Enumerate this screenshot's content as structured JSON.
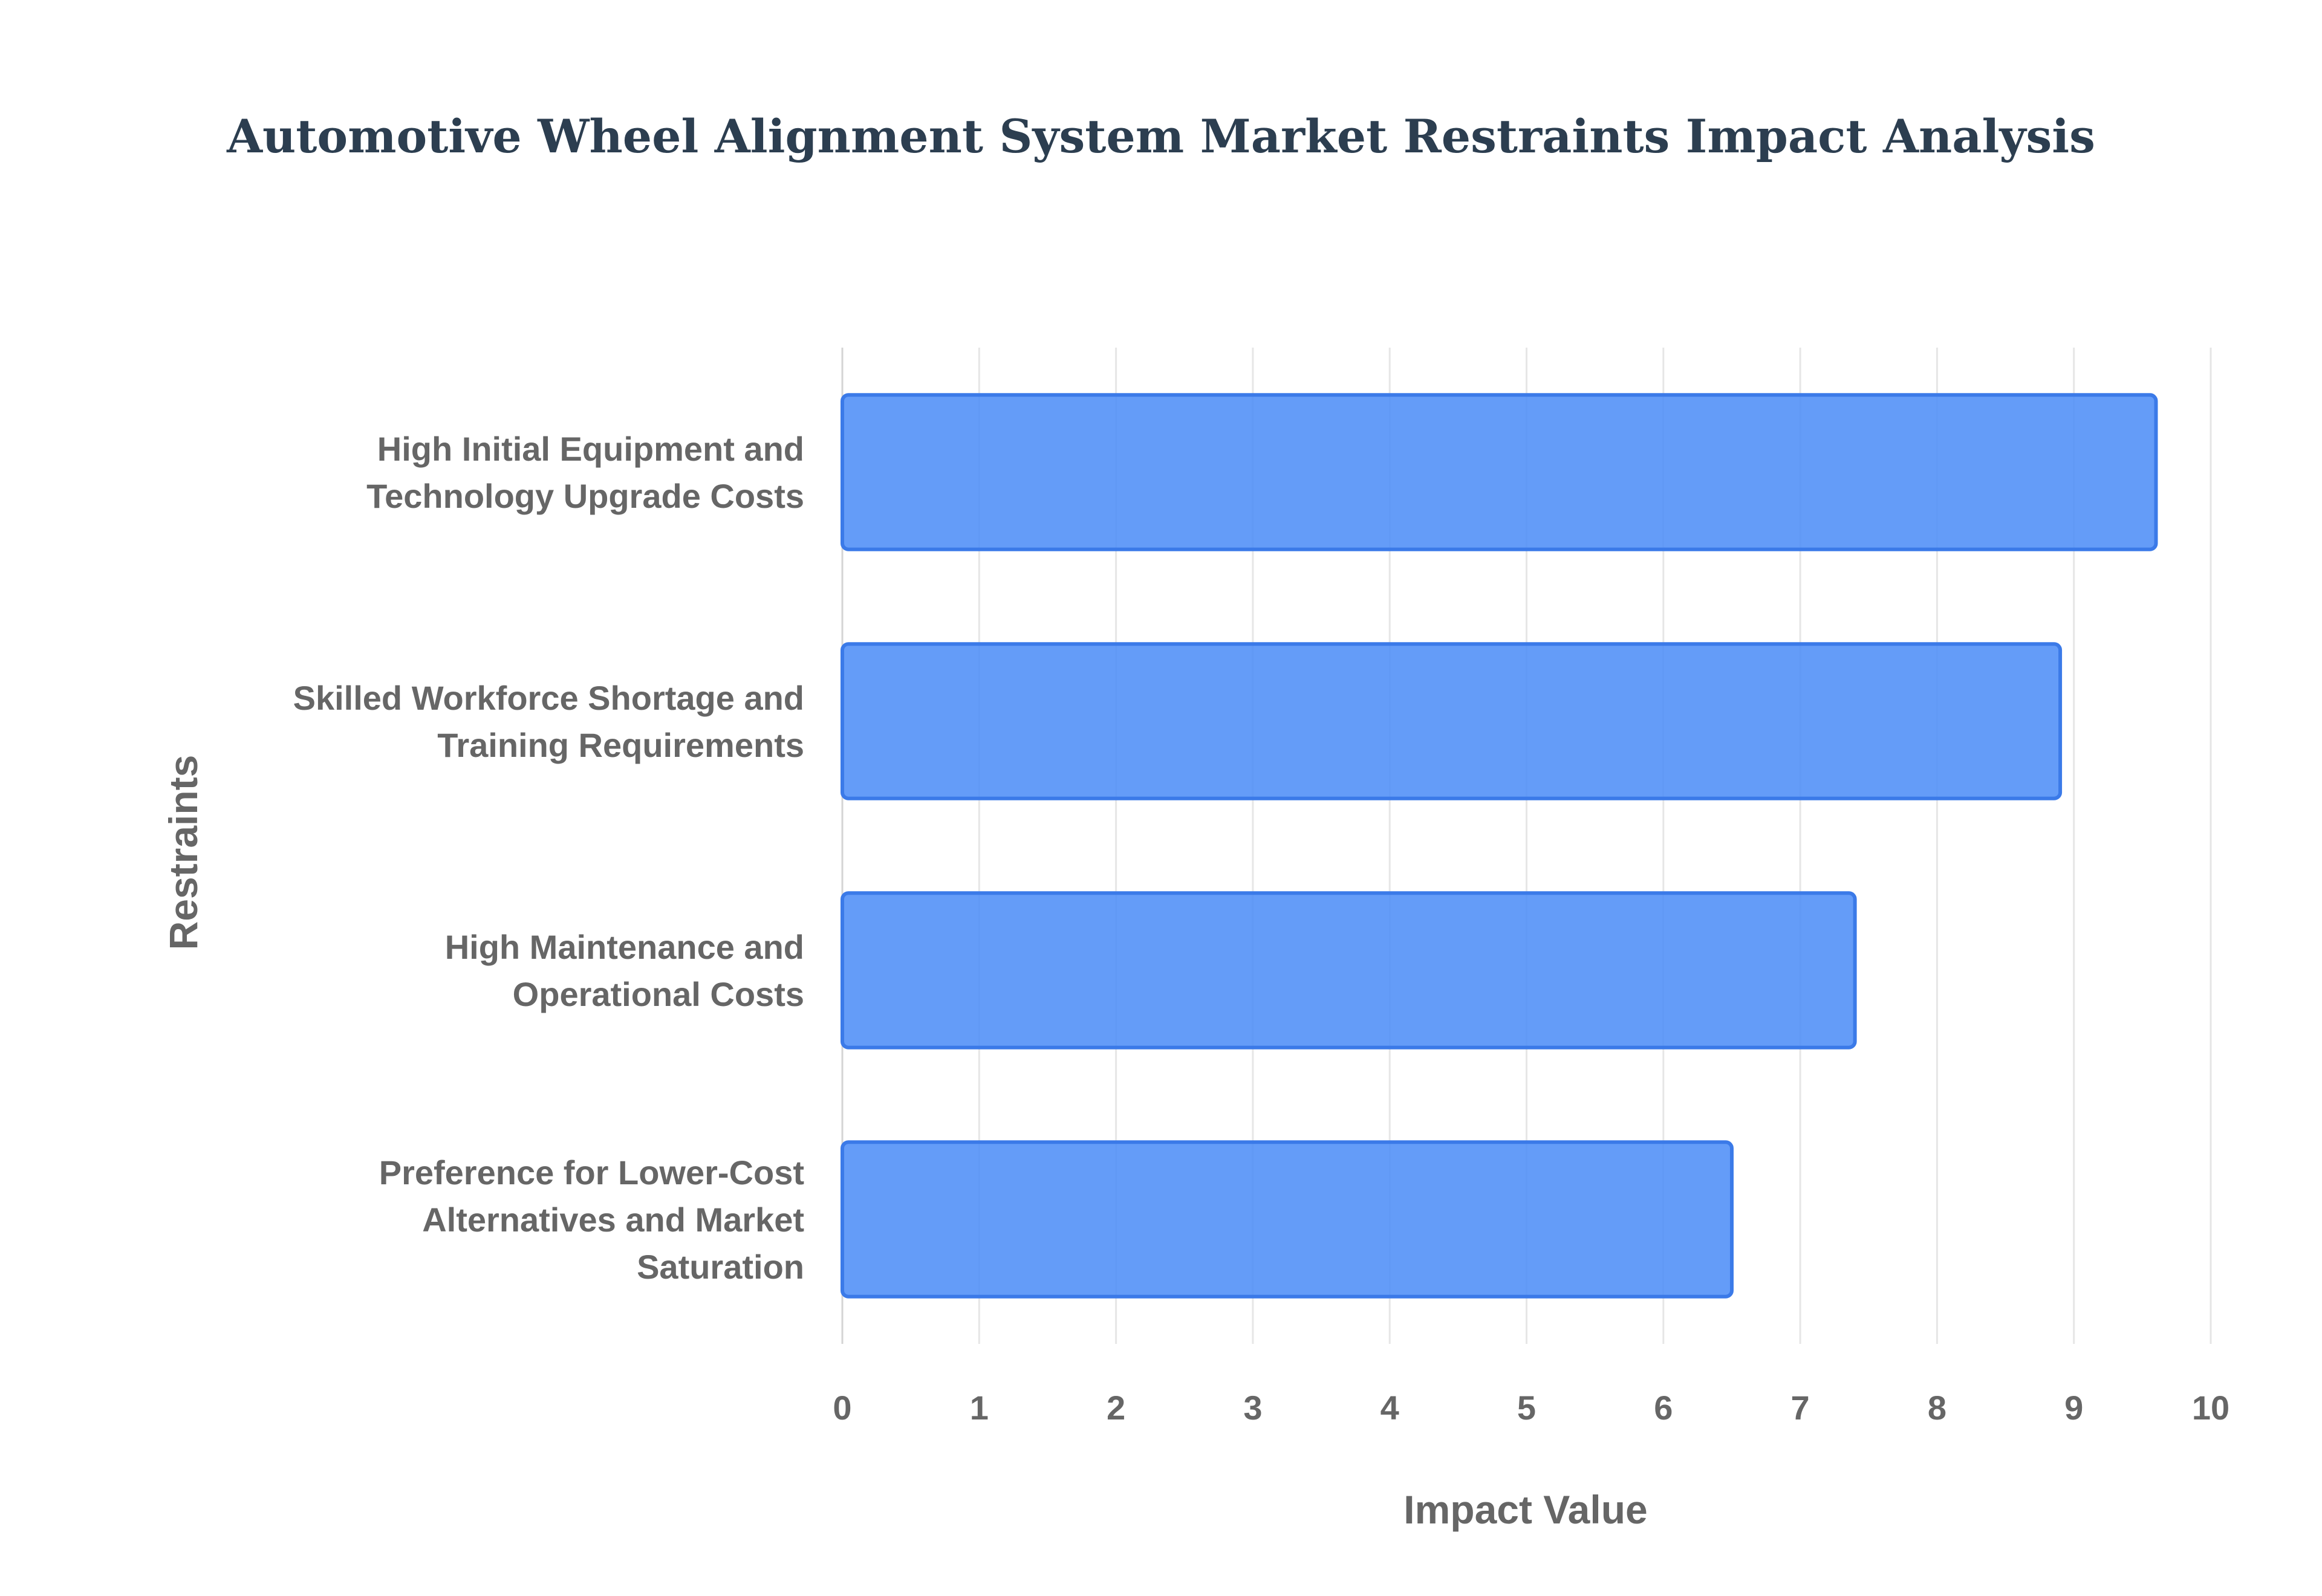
{
  "chart_data": {
    "type": "bar",
    "orientation": "horizontal",
    "title": "Automotive Wheel Alignment System Market Restraints Impact Analysis",
    "xlabel": "Impact Value",
    "ylabel": "Restraints",
    "xlim": [
      0,
      10
    ],
    "xticks": [
      0,
      1,
      2,
      3,
      4,
      5,
      6,
      7,
      8,
      9,
      10
    ],
    "grid": true,
    "legend": "none",
    "bar_color": "#4f8ef7",
    "bar_border_color": "#3b7ae8",
    "categories": [
      [
        "High Initial Equipment and",
        "Technology Upgrade Costs"
      ],
      [
        "Skilled Workforce Shortage and",
        "Training Requirements"
      ],
      [
        "High Maintenance and",
        "Operational Costs"
      ],
      [
        "Preference for Lower-Cost",
        "Alternatives and Market",
        "Saturation"
      ]
    ],
    "values": [
      9.6,
      8.9,
      7.4,
      6.5
    ]
  }
}
